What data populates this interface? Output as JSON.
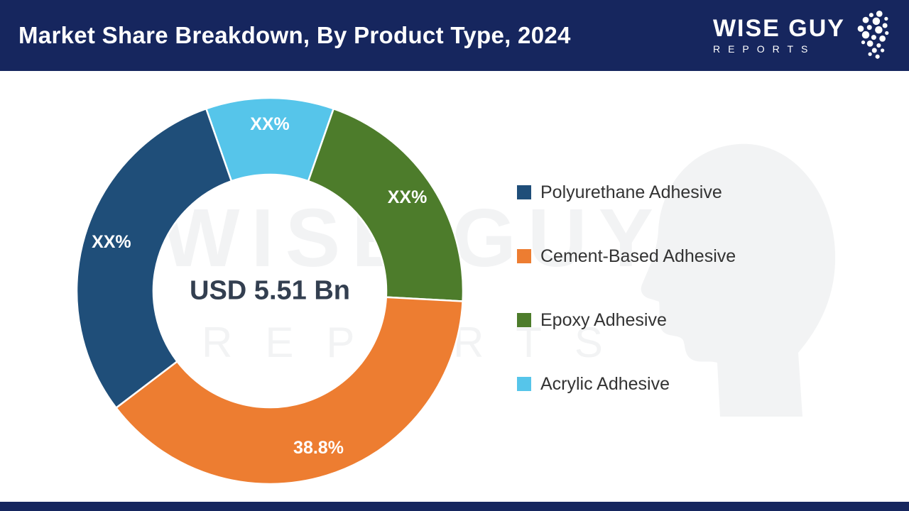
{
  "header": {
    "title": "Market Share Breakdown, By Product Type, 2024",
    "bg_color": "#16265e",
    "logo": {
      "wordmark": "WISE GUY",
      "subtext": "REPORTS"
    }
  },
  "chart_data": {
    "type": "donut",
    "center_label": "USD 5.51 Bn",
    "segments": [
      {
        "label": "Polyurethane Adhesive",
        "value": 30.0,
        "display_label": "XX%",
        "color": "#1f4e79"
      },
      {
        "label": "Cement-Based Adhesive",
        "value": 38.8,
        "display_label": "38.8%",
        "color": "#ed7d31"
      },
      {
        "label": "Epoxy Adhesive",
        "value": 20.5,
        "display_label": "XX%",
        "color": "#4d7c2b"
      },
      {
        "label": "Acrylic Adhesive",
        "value": 10.7,
        "display_label": "XX%",
        "color": "#56c5ea"
      }
    ],
    "draw_order": [
      3,
      2,
      1,
      0
    ],
    "rotation": "acrylic segment centered at top, clockwise",
    "legend_position": "right",
    "note": "Only the Cement-Based Adhesive share is shown numerically (38.8%); other slices show XX% placeholders; values estimated from arc angles"
  },
  "legend": {
    "items": [
      {
        "label": "Polyurethane Adhesive",
        "color": "#1f4e79"
      },
      {
        "label": "Cement-Based Adhesive",
        "color": "#ed7d31"
      },
      {
        "label": "Epoxy Adhesive",
        "color": "#4d7c2b"
      },
      {
        "label": "Acrylic Adhesive",
        "color": "#56c5ea"
      }
    ]
  },
  "watermark": {
    "line1": "WISE GUY",
    "line2": "REPORTS"
  }
}
